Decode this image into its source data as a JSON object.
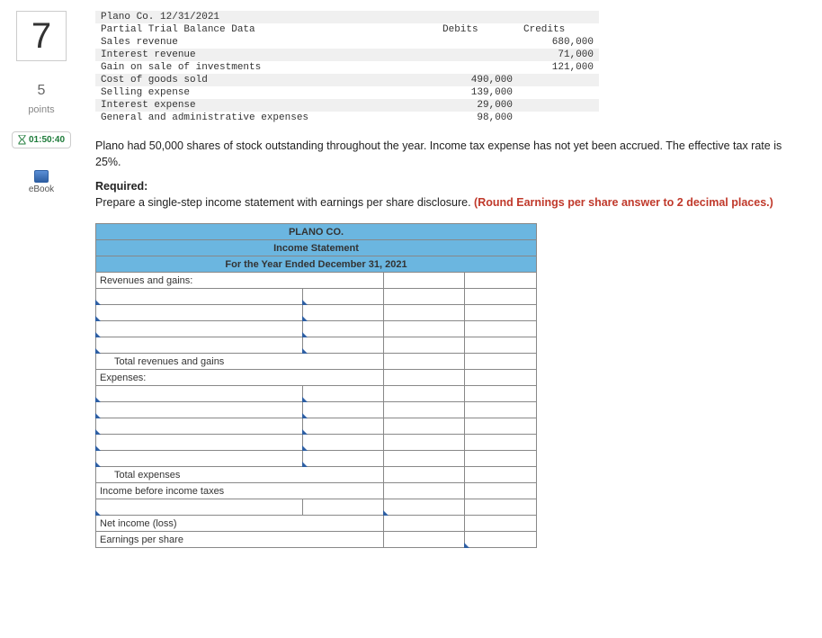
{
  "sidebar": {
    "question_number": "7",
    "points_value": "5",
    "points_label": "points",
    "timer": "01:50:40",
    "ebook_label": "eBook"
  },
  "trial_balance": {
    "company_line": "Plano Co. 12/31/2021",
    "title_line": "Partial Trial Balance Data",
    "debits_hdr": "Debits",
    "credits_hdr": "Credits",
    "rows": [
      {
        "label": "Sales revenue",
        "debit": "",
        "credit": "680,000",
        "alt": false
      },
      {
        "label": "Interest revenue",
        "debit": "",
        "credit": "71,000",
        "alt": true
      },
      {
        "label": "Gain on sale of investments",
        "debit": "",
        "credit": "121,000",
        "alt": false
      },
      {
        "label": "Cost of goods sold",
        "debit": "490,000",
        "credit": "",
        "alt": true
      },
      {
        "label": "Selling expense",
        "debit": "139,000",
        "credit": "",
        "alt": false
      },
      {
        "label": "Interest expense",
        "debit": "29,000",
        "credit": "",
        "alt": true
      },
      {
        "label": "General and administrative expenses",
        "debit": "98,000",
        "credit": "",
        "alt": false
      }
    ]
  },
  "problem": {
    "para1": "Plano had 50,000 shares of stock outstanding throughout the year. Income tax expense has not yet been accrued. The effective tax rate is 25%.",
    "required_label": "Required:",
    "required_text": "Prepare a single-step income statement with earnings per share disclosure. ",
    "required_red": "(Round Earnings per share answer to 2 decimal places.)"
  },
  "worksheet": {
    "header1": "PLANO CO.",
    "header2": "Income Statement",
    "header3": "For the Year Ended December 31, 2021",
    "revenues_label": "Revenues and gains:",
    "total_rev_label": "Total revenues and gains",
    "expenses_label": "Expenses:",
    "total_exp_label": "Total expenses",
    "ibit_label": "Income before income taxes",
    "ni_label": "Net income (loss)",
    "eps_label": "Earnings per share"
  },
  "colors": {
    "header_bg": "#6bb6e0",
    "border": "#888888",
    "red_text": "#c0392b",
    "timer_green": "#1e7b3a"
  }
}
